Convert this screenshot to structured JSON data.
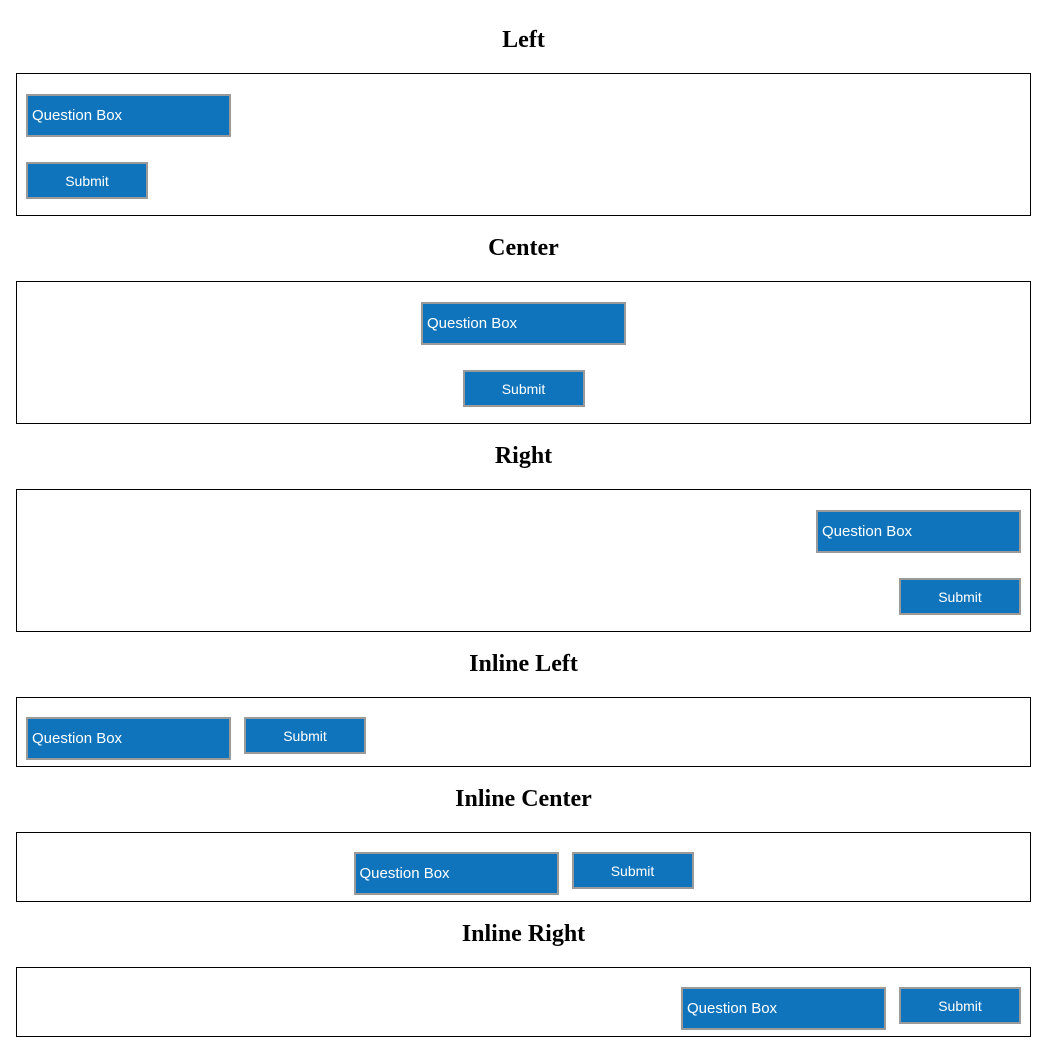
{
  "sections": [
    {
      "heading": "Left",
      "layout": "stacked-left"
    },
    {
      "heading": "Center",
      "layout": "stacked-center"
    },
    {
      "heading": "Right",
      "layout": "stacked-right"
    },
    {
      "heading": "Inline Left",
      "layout": "inline-left"
    },
    {
      "heading": "Inline Center",
      "layout": "inline-center"
    },
    {
      "heading": "Inline Right",
      "layout": "inline-right"
    }
  ],
  "widgets": {
    "question_placeholder": "Question Box",
    "submit_label": "Submit"
  },
  "colors": {
    "widget_background": "#0f74bc",
    "widget_border": "#9a9a9a",
    "widget_text": "#ffffff",
    "panel_border": "#000000",
    "page_background": "#ffffff",
    "heading_text": "#000000"
  }
}
